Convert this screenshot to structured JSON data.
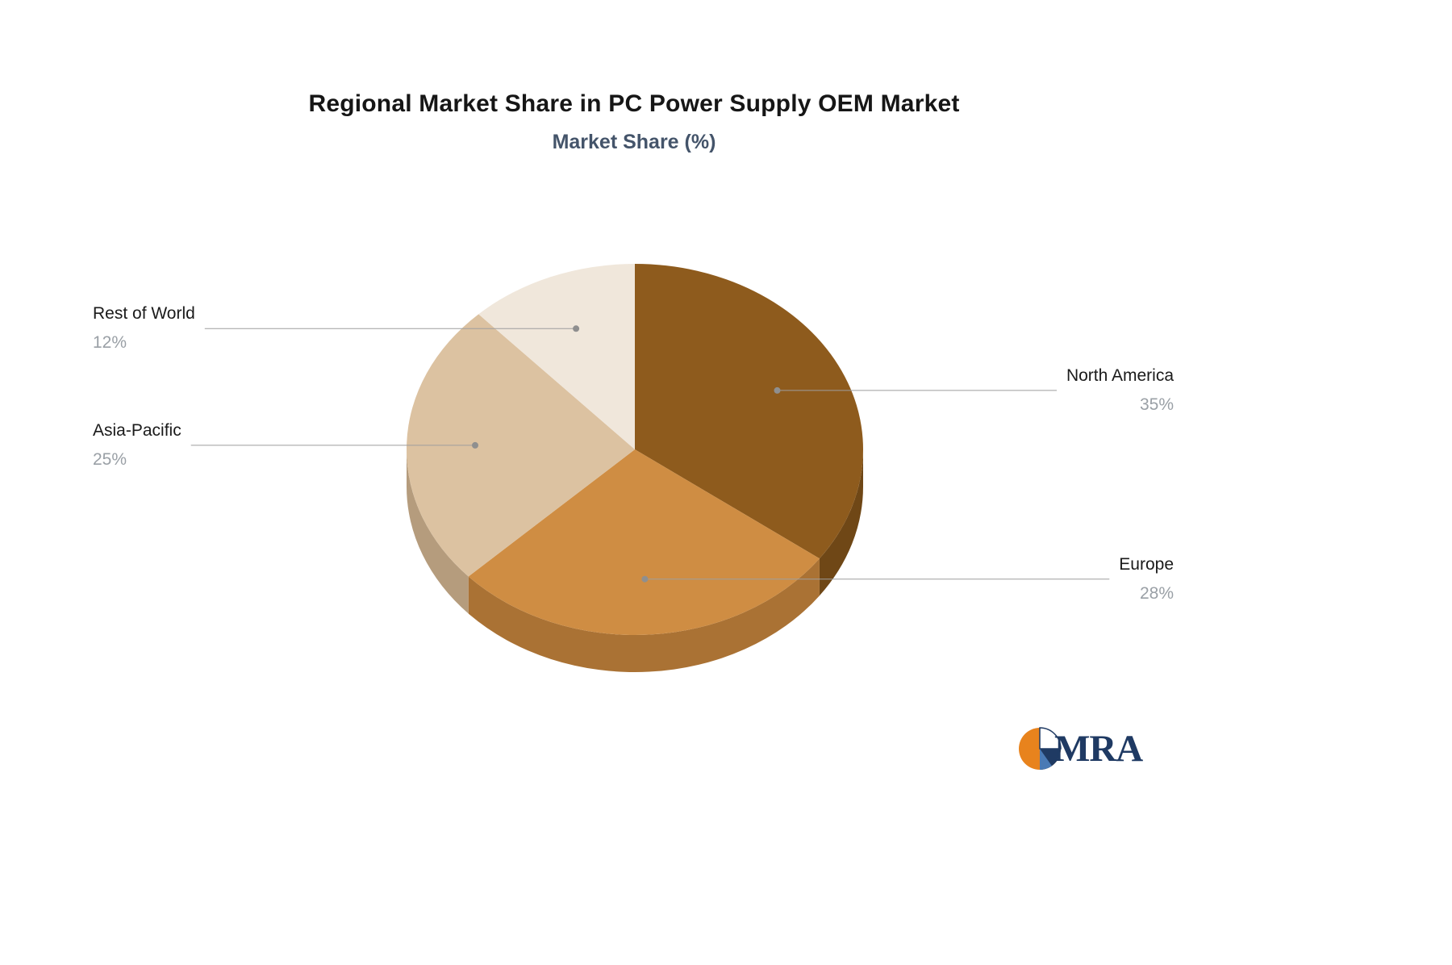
{
  "chart_data": {
    "type": "pie",
    "title": "Regional Market Share in PC Power Supply OEM Market",
    "subtitle": "Market Share (%)",
    "unit": "%",
    "effect": "3d",
    "start_angle_deg": -90,
    "direction": "clockwise",
    "legend": "none",
    "labels_position": "outside-callouts",
    "slices": [
      {
        "label": "North America",
        "value": 35,
        "display": "35%",
        "color": "#8E5B1D",
        "side_color": "#6F4716"
      },
      {
        "label": "Europe",
        "value": 28,
        "display": "28%",
        "color": "#CF8D43",
        "side_color": "#AA7234"
      },
      {
        "label": "Asia-Pacific",
        "value": 25,
        "display": "25%",
        "color": "#DCC2A1",
        "side_color": "#B59C7D"
      },
      {
        "label": "Rest of World",
        "value": 12,
        "display": "12%",
        "color": "#F0E7DB",
        "side_color": "#CFC3B2"
      }
    ],
    "label_name_color": "#1a1a1a",
    "label_value_color": "#9aa0a6",
    "leader_line_color": "#9e9e9e",
    "leader_dot_color": "#8f8f8f"
  },
  "logo": {
    "text": "MRA",
    "text_color": "#1F3A63",
    "orange": "#E8831D",
    "navy": "#1F3A63",
    "blue": "#4A7AB5",
    "white": "#FFFFFF"
  }
}
